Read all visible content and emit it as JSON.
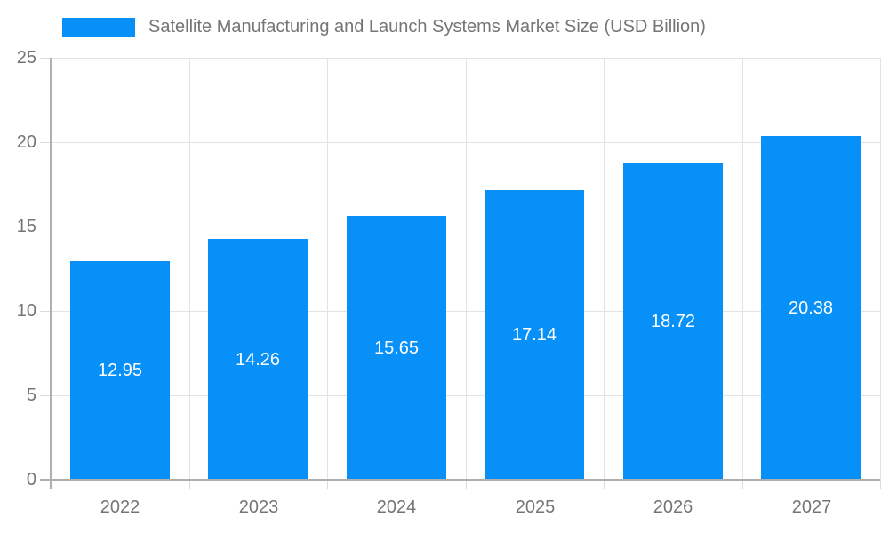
{
  "chart_data": {
    "type": "bar",
    "title": "Satellite Manufacturing and Launch Systems Market Size (USD Billion)",
    "categories": [
      "2022",
      "2023",
      "2024",
      "2025",
      "2026",
      "2027"
    ],
    "values": [
      12.95,
      14.26,
      15.65,
      17.14,
      18.72,
      20.38
    ],
    "xlabel": "",
    "ylabel": "",
    "ylim": [
      0,
      25
    ],
    "yticks": [
      0,
      5,
      10,
      15,
      20,
      25
    ],
    "grid": true,
    "legend_position": "top-left",
    "bar_color": "#0690f8",
    "bar_label_color": "#ffffff",
    "axis_text_color": "#757575",
    "gridline_color": "#e3e3e3",
    "axis_line_color": "#b0b0b0"
  }
}
